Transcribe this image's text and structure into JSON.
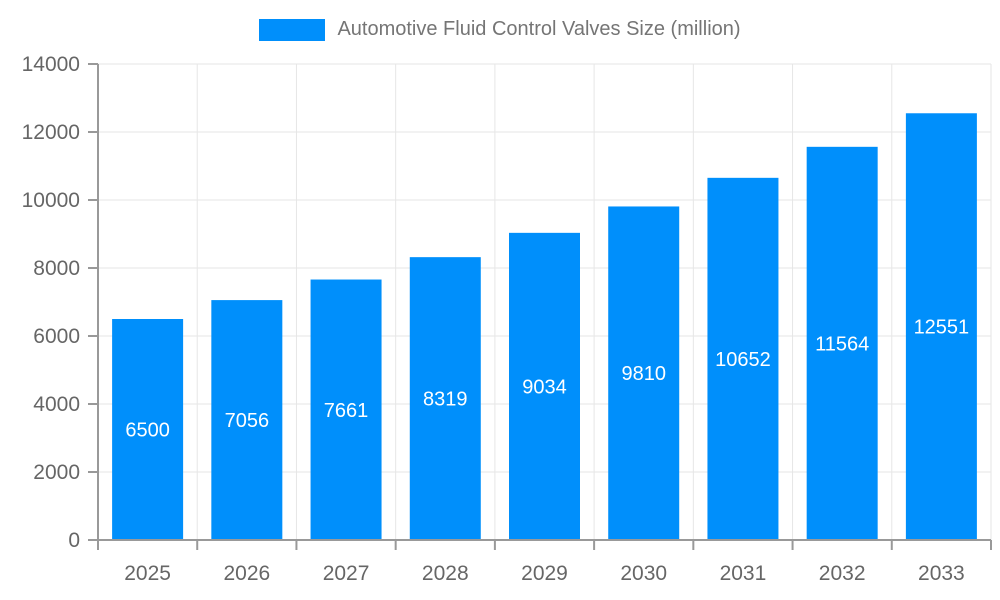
{
  "chart_data": {
    "type": "bar",
    "title": "Automotive Fluid Control Valves Size (million)",
    "legend": [
      "Automotive Fluid Control Valves Size (million)"
    ],
    "legend_position": "top",
    "categories": [
      "2025",
      "2026",
      "2027",
      "2028",
      "2029",
      "2030",
      "2031",
      "2032",
      "2033"
    ],
    "series": [
      {
        "name": "Automotive Fluid Control Valves Size (million)",
        "values": [
          6500,
          7056,
          7661,
          8319,
          9034,
          9810,
          10652,
          11564,
          12551
        ]
      }
    ],
    "xlabel": "",
    "ylabel": "",
    "ylim": [
      0,
      14000
    ],
    "ytick_step": 2000,
    "ytick_labels": [
      "0",
      "2000",
      "4000",
      "6000",
      "8000",
      "10000",
      "12000",
      "14000"
    ],
    "grid": true,
    "bar_labels_visible": true,
    "colors": {
      "bar": "#008FFB",
      "bar_label_text": "#ffffff",
      "axis_line": "#999999",
      "grid_line": "#e6e6e6",
      "tick_label_text": "#666666",
      "legend_text": "#757575",
      "background": "#ffffff"
    }
  }
}
